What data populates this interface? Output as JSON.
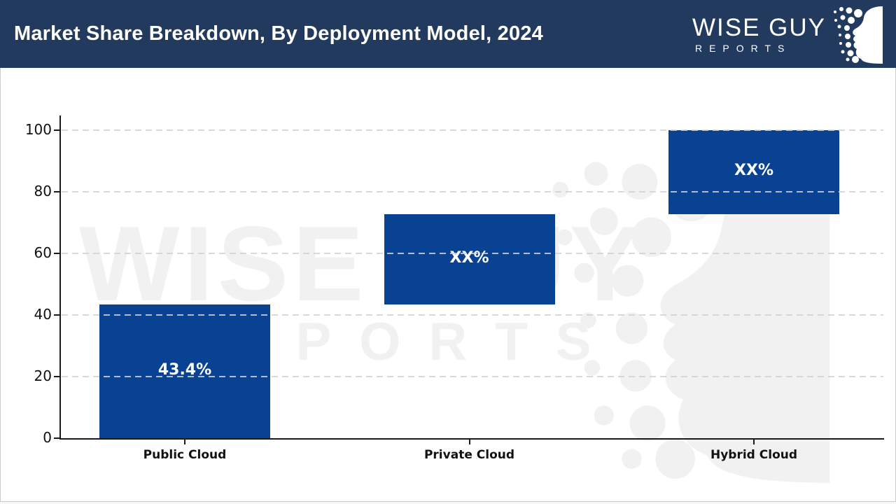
{
  "header": {
    "title": "Market Share Breakdown, By Deployment Model, 2024",
    "brand": {
      "line1": "WISE GUY",
      "line2": "REPORTS"
    }
  },
  "watermark": {
    "line1": "WISE GUY",
    "line2": "REPORTS"
  },
  "colors": {
    "header_bg": "#233a5f",
    "bar": "#094293",
    "bar_label": "#ffffff",
    "watermark": "#f1f1f2",
    "gridline": "#d2d2d2",
    "axis": "#1a1a1a"
  },
  "chart_data": {
    "type": "bar",
    "variant": "stacked-waterfall",
    "title": "Market Share Breakdown, By Deployment Model, 2024",
    "categories": [
      "Public Cloud",
      "Private Cloud",
      "Hybrid Cloud"
    ],
    "segments": [
      {
        "category": "Public Cloud",
        "start": 0,
        "end": 43.4,
        "label": "43.4%"
      },
      {
        "category": "Private Cloud",
        "start": 43.4,
        "end": 72.7,
        "label": "XX%"
      },
      {
        "category": "Hybrid Cloud",
        "start": 72.7,
        "end": 100,
        "label": "XX%"
      }
    ],
    "yticks": [
      0,
      20,
      40,
      60,
      80,
      100
    ],
    "ylim": [
      0,
      105
    ],
    "xlabel": "",
    "ylabel": "",
    "grid": true,
    "grid_style": "dashed",
    "legend": "none"
  }
}
